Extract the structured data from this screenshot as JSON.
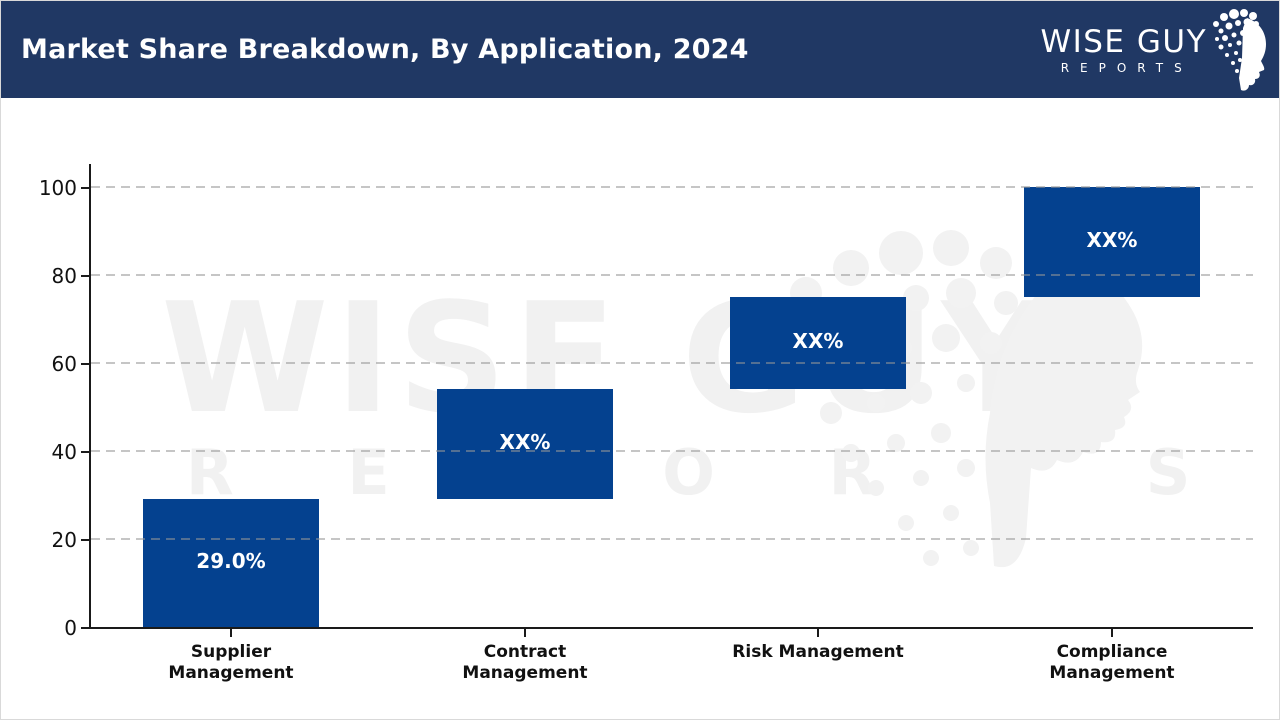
{
  "header": {
    "title": "Market Share Breakdown, By Application, 2024",
    "bg_color": "#203864",
    "logo": {
      "line1": "WISE GUY",
      "line2": "REPORTS"
    }
  },
  "watermark": {
    "line1": "WISE GUY",
    "line2": "R E P O R T S"
  },
  "chart_data": {
    "type": "bar",
    "subtype": "waterfall",
    "title": "Market Share Breakdown, By Application, 2024",
    "categories": [
      "Supplier Management",
      "Contract Management",
      "Risk Management",
      "Compliance Management"
    ],
    "category_label_lines": [
      [
        "Supplier",
        "Management"
      ],
      [
        "Contract",
        "Management"
      ],
      [
        "Risk Management"
      ],
      [
        "Compliance",
        "Management"
      ]
    ],
    "segments": [
      {
        "category": "Supplier Management",
        "start": 0,
        "end": 29,
        "label": "29.0%"
      },
      {
        "category": "Contract Management",
        "start": 29,
        "end": 54,
        "label": "XX%"
      },
      {
        "category": "Risk Management",
        "start": 54,
        "end": 75,
        "label": "XX%"
      },
      {
        "category": "Compliance Management",
        "start": 75,
        "end": 100,
        "label": "XX%"
      }
    ],
    "xlabel": "",
    "ylabel": "",
    "ylim": [
      0,
      100
    ],
    "yticks": [
      0,
      20,
      40,
      60,
      80,
      100
    ],
    "grid": "horizontal-dashed",
    "legend": "none",
    "bar_color": "#04418F",
    "bar_label_color": "#ffffff",
    "axis_color": "#1a1a1a",
    "grid_color": "#c9c9c9"
  }
}
